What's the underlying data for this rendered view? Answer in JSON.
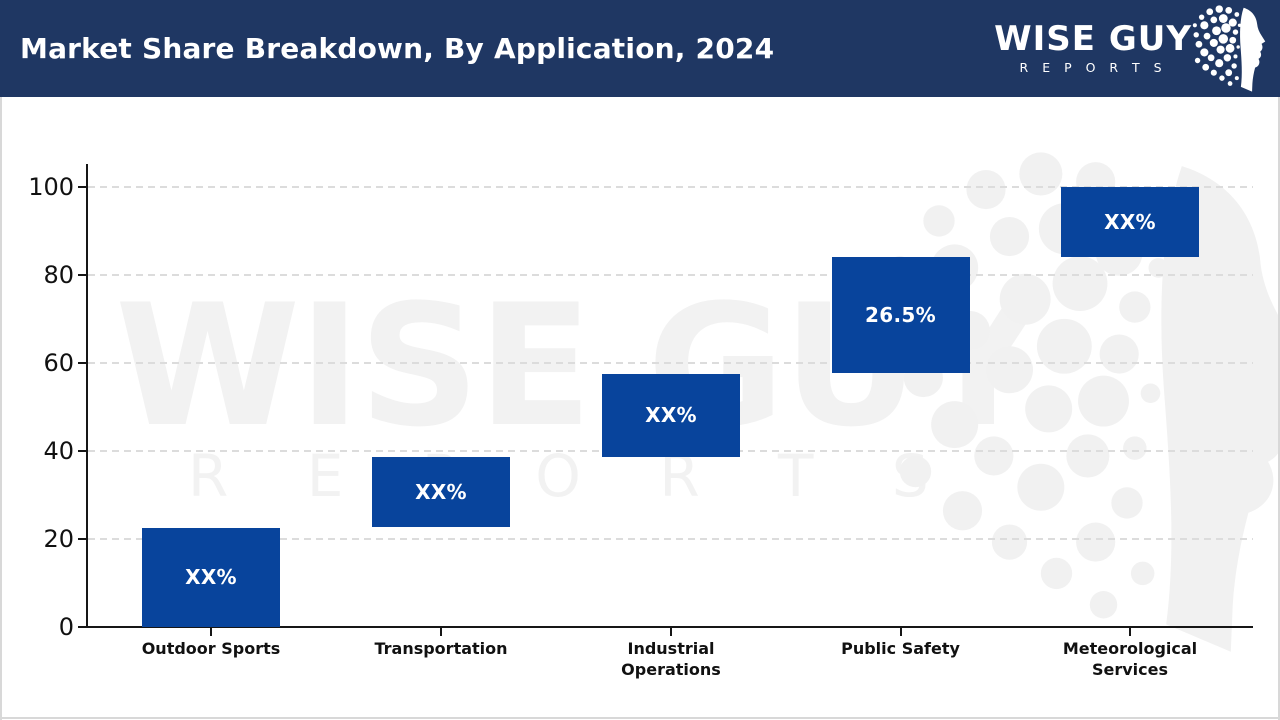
{
  "header": {
    "title": "Market Share Breakdown, By Application, 2024"
  },
  "brand": {
    "name": "WISE GUY",
    "subtitle": "R E P O R T S"
  },
  "watermark": {
    "line1": "WISE GUY",
    "line2": "R E P O R T S"
  },
  "colors": {
    "header_bg": "#1f3763",
    "bar": "#08449c",
    "value_label": "#ffffff",
    "grid": "#dcdcdc",
    "axis": "#161616",
    "watermark": "#f2f2f2"
  },
  "chart_data": {
    "type": "bar",
    "subtype": "floating-waterfall",
    "title": "Market Share Breakdown, By Application, 2024",
    "categories": [
      "Outdoor Sports",
      "Transportation",
      "Industrial Operations",
      "Public Safety",
      "Meteorological Services"
    ],
    "segments": [
      {
        "category": "Outdoor Sports",
        "start": 0,
        "end": 22.5,
        "label": "XX%"
      },
      {
        "category": "Transportation",
        "start": 22.5,
        "end": 38.5,
        "label": "XX%"
      },
      {
        "category": "Industrial Operations",
        "start": 38.5,
        "end": 57.5,
        "label": "XX%"
      },
      {
        "category": "Public Safety",
        "start": 57.5,
        "end": 84,
        "label": "26.5%"
      },
      {
        "category": "Meteorological Services",
        "start": 84,
        "end": 100,
        "label": "XX%"
      }
    ],
    "yticks": [
      0,
      20,
      40,
      60,
      80,
      100
    ],
    "ylim": [
      0,
      105
    ],
    "xlabel": "",
    "ylabel": "",
    "grid": "horizontal-dashed",
    "legend": "none"
  }
}
